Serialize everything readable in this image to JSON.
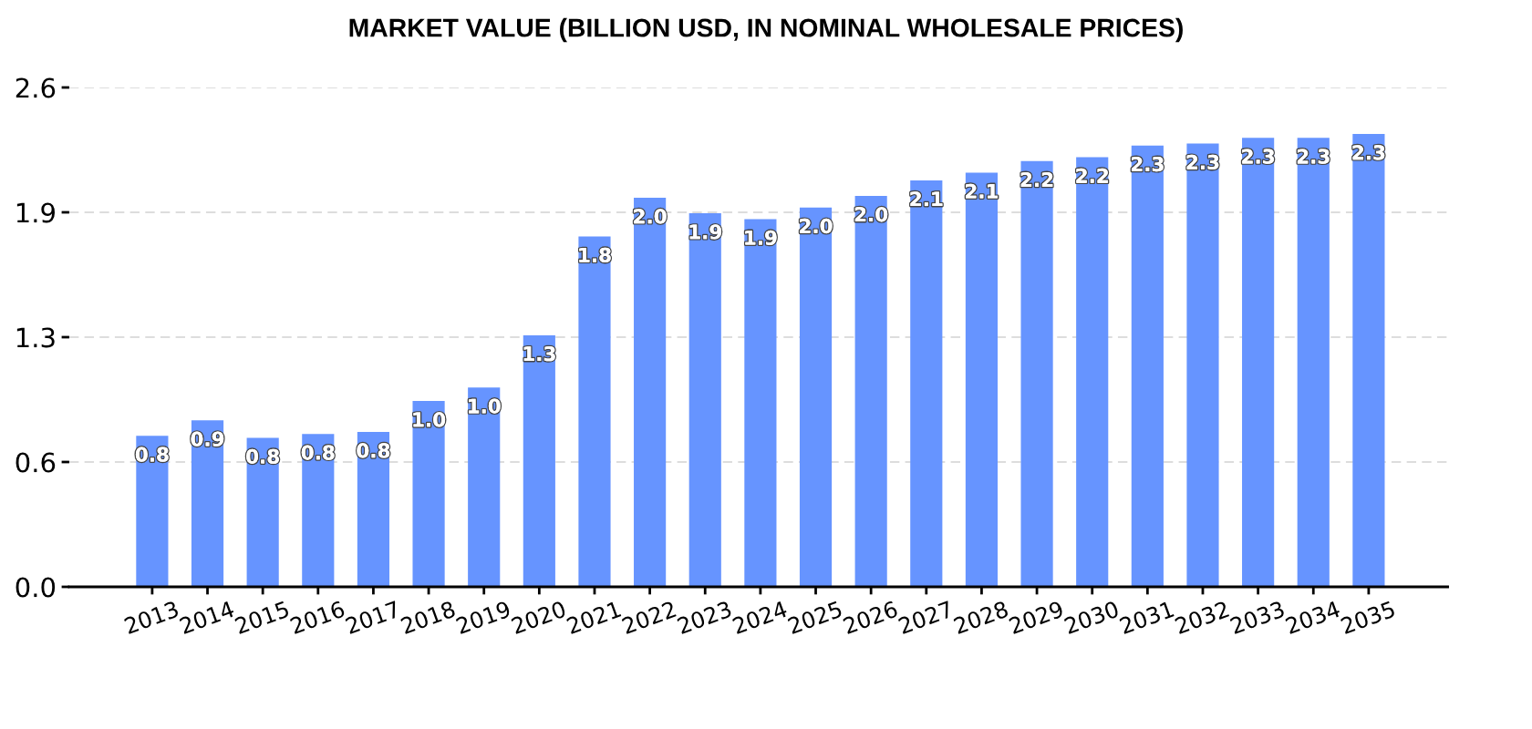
{
  "chart_data": {
    "type": "bar",
    "title": "MARKET VALUE (BILLION USD, IN NOMINAL WHOLESALE PRICES)",
    "categories": [
      "2013",
      "2014",
      "2015",
      "2016",
      "2017",
      "2018",
      "2019",
      "2020",
      "2021",
      "2022",
      "2023",
      "2024",
      "2025",
      "2026",
      "2027",
      "2028",
      "2029",
      "2030",
      "2031",
      "2032",
      "2033",
      "2034",
      "2035"
    ],
    "values": [
      0.78,
      0.86,
      0.77,
      0.79,
      0.8,
      0.96,
      1.03,
      1.3,
      1.81,
      2.01,
      1.93,
      1.9,
      1.96,
      2.02,
      2.1,
      2.14,
      2.2,
      2.22,
      2.28,
      2.29,
      2.32,
      2.32,
      2.34
    ],
    "value_labels": [
      "0.8",
      "0.9",
      "0.8",
      "0.8",
      "0.8",
      "1.0",
      "1.0",
      "1.3",
      "1.8",
      "2.0",
      "1.9",
      "1.9",
      "2.0",
      "2.0",
      "2.1",
      "2.1",
      "2.2",
      "2.2",
      "2.3",
      "2.3",
      "2.3",
      "2.3",
      "2.3"
    ],
    "color": "#6694ff",
    "ylim": [
      0,
      2.58
    ],
    "yticks": [
      {
        "value": 0,
        "label": "0.0"
      },
      {
        "value": 0.645,
        "label": "0.6"
      },
      {
        "value": 1.29,
        "label": "1.3"
      },
      {
        "value": 1.935,
        "label": "1.9"
      },
      {
        "value": 2.58,
        "label": "2.6"
      }
    ],
    "grid": "y"
  }
}
